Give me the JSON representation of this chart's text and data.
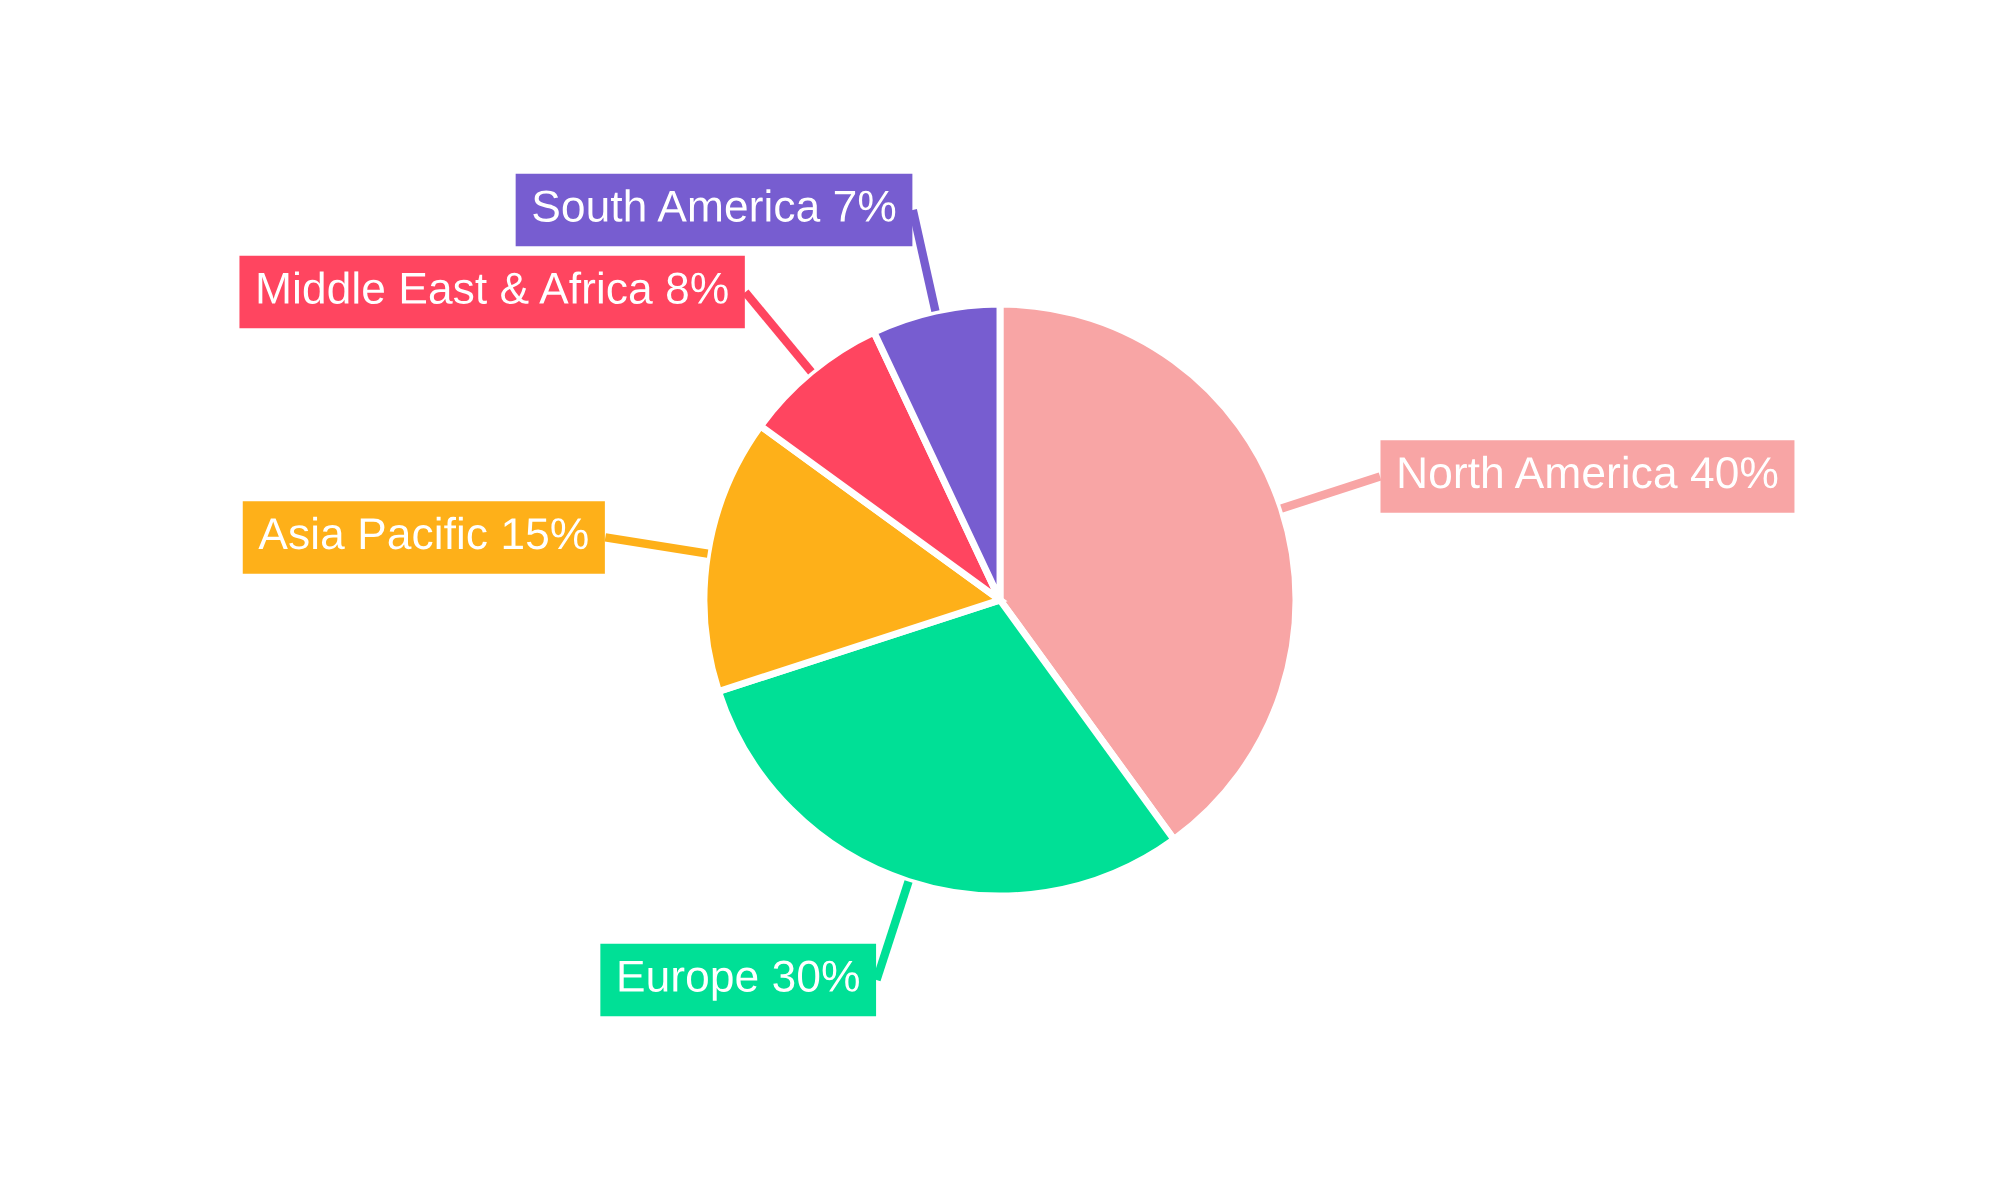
{
  "chart_data": {
    "type": "pie",
    "categories": [
      "North America",
      "Europe",
      "Asia Pacific",
      "Middle East & Africa",
      "South America"
    ],
    "values": [
      40,
      30,
      15,
      8,
      7
    ],
    "value_labels": [
      "40%",
      "30%",
      "15%",
      "8%",
      "7%"
    ],
    "colors": [
      "#f8a5a5",
      "#00e096",
      "#feb019",
      "#ff4560",
      "#775dd0"
    ]
  }
}
